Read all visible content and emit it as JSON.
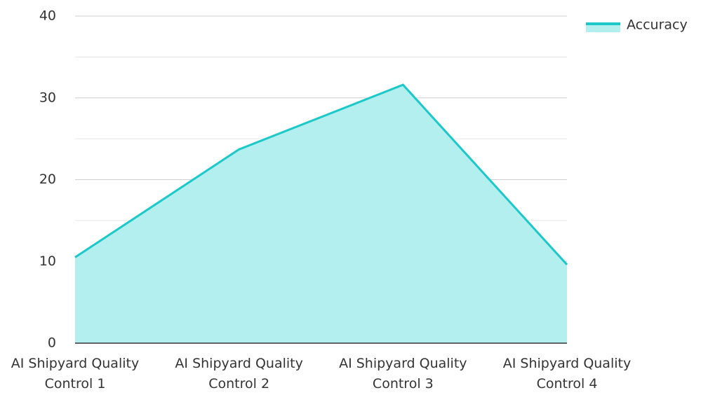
{
  "chart_data": {
    "type": "area",
    "categories": [
      "AI Shipyard Quality Control 1",
      "AI Shipyard Quality Control 2",
      "AI Shipyard Quality Control 3",
      "AI Shipyard Quality Control 4"
    ],
    "series": [
      {
        "name": "Accuracy",
        "color": "#1cc8c8",
        "fill": "#b2efee",
        "values": [
          10.5,
          23.7,
          31.6,
          9.6
        ]
      }
    ],
    "ylim": [
      0,
      40
    ],
    "yticks": [
      0,
      10,
      20,
      30,
      40
    ],
    "grid": true,
    "legend": "top-right"
  }
}
